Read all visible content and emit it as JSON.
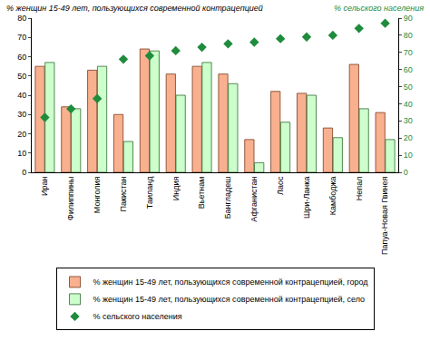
{
  "chart_data": {
    "type": "bar",
    "ylabel": "% женщин 15-49 лет, пользующихся современной контрацепцией",
    "y2label": "% сельского населения",
    "categories": [
      "Иран",
      "Филиппины",
      "Монголия",
      "Пакистан",
      "Таиланд",
      "Индия",
      "Вьетнам",
      "Бангладеш",
      "Афганистан",
      "Лаос",
      "Шри-Ланка",
      "Камбоджа",
      "Непал",
      "Папуа-Новая Гвинея"
    ],
    "series": [
      {
        "name": "% женщин 15-49 лет, пользующихся современной контрацепцией, город",
        "type": "bar",
        "color": "#f9b08e",
        "values": [
          55,
          34,
          53,
          30,
          64,
          51,
          55,
          51,
          17,
          42,
          41,
          23,
          56,
          31
        ]
      },
      {
        "name": "% женщин 15-49 лет, пользующихся современной контрацепцией, село",
        "type": "bar",
        "color": "#ccffcc",
        "values": [
          57,
          33,
          55,
          16,
          63,
          40,
          57,
          46,
          5,
          26,
          40,
          18,
          33,
          17
        ]
      },
      {
        "name": "% сельского населения",
        "type": "scatter",
        "marker": "diamond",
        "color": "#1e8c3c",
        "axis": "y2",
        "values": [
          32,
          37,
          43,
          66,
          68,
          71,
          73,
          75,
          76,
          78,
          79,
          80,
          84,
          87
        ]
      }
    ],
    "ylim": [
      0,
      80
    ],
    "yticks": [
      0,
      10,
      20,
      30,
      40,
      50,
      60,
      70,
      80
    ],
    "y2lim": [
      0,
      90
    ],
    "y2ticks": [
      0,
      10,
      20,
      30,
      40,
      50,
      60,
      70,
      80,
      90
    ],
    "grid": false,
    "legend": "bottom"
  }
}
